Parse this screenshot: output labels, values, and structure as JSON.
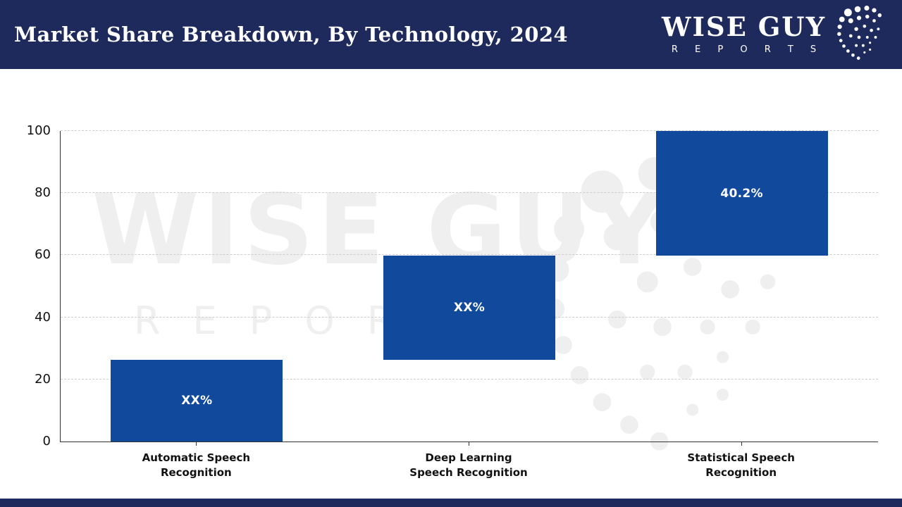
{
  "header": {
    "title": "Market Share Breakdown, By Technology, 2024",
    "logo": {
      "line1": "WISE GUY",
      "line2": "R E P O R T S"
    }
  },
  "watermark": {
    "line1": "WISE GUY",
    "line2": "REPORTS"
  },
  "colors": {
    "header_bg": "#1e2a5c",
    "bar": "#114a9d",
    "grid": "#cccccc",
    "watermark": "#efefef",
    "bar_label": "#ffffff"
  },
  "chart_data": {
    "type": "bar",
    "subtype": "waterfall-stacked",
    "title": "Market Share Breakdown, By Technology, 2024",
    "categories": [
      [
        "Automatic Speech",
        "Recognition"
      ],
      [
        "Deep Learning",
        "Speech Recognition"
      ],
      [
        "Statistical Speech",
        "Recognition"
      ]
    ],
    "segments": [
      {
        "start": 0,
        "end": 26.3,
        "label": "XX%"
      },
      {
        "start": 26.3,
        "end": 59.8,
        "label": "XX%"
      },
      {
        "start": 59.8,
        "end": 100,
        "label": "40.2%"
      }
    ],
    "ylim": [
      0,
      100
    ],
    "yticks": [
      0,
      20,
      40,
      60,
      80,
      100
    ],
    "grid": "dashed-horizontal",
    "legend": "none",
    "xlabel": "",
    "ylabel": ""
  }
}
